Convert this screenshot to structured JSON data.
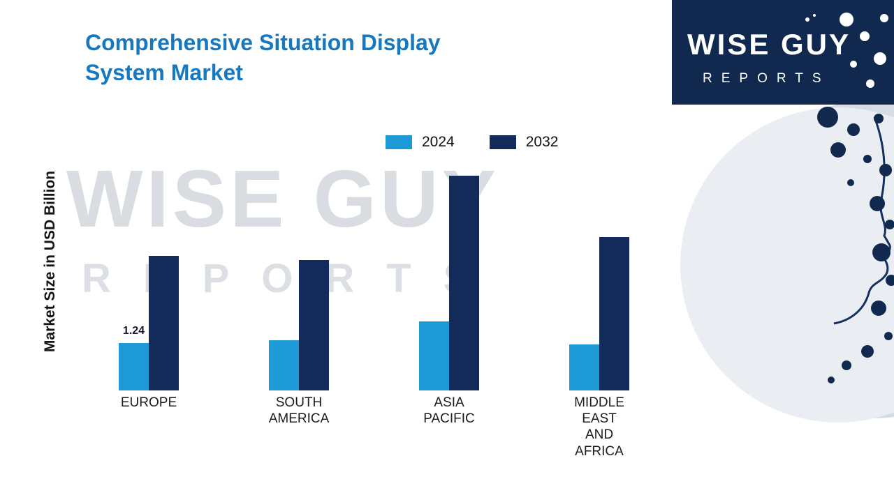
{
  "header": {
    "title_line1": "Comprehensive Situation Display",
    "title_line2": "System Market"
  },
  "logo": {
    "brand_line1": "WISE GUY",
    "brand_line2": "REPORTS"
  },
  "watermark": {
    "line1": "WISE GUY",
    "line2": "REPORTS"
  },
  "colors": {
    "title_blue": "#1878bf",
    "bar_2024": "#1e9ad6",
    "bar_2032": "#122b5a",
    "logo_navy": "#12294f"
  },
  "chart_data": {
    "type": "bar",
    "title": "Comprehensive Situation Display System Market",
    "xlabel": "",
    "ylabel": "Market Size in USD Billion",
    "categories": [
      "EUROPE",
      "SOUTH AMERICA",
      "ASIA PACIFIC",
      "MIDDLE EAST AND AFRICA"
    ],
    "category_label_lines": [
      [
        "EUROPE"
      ],
      [
        "SOUTH",
        "AMERICA"
      ],
      [
        "ASIA",
        "PACIFIC"
      ],
      [
        "MIDDLE",
        "EAST",
        "AND",
        "AFRICA"
      ]
    ],
    "series": [
      {
        "name": "2024",
        "color": "#1e9ad6",
        "values": [
          1.24,
          1.3,
          1.8,
          1.2
        ]
      },
      {
        "name": "2032",
        "color": "#122b5a",
        "values": [
          3.5,
          3.4,
          5.6,
          4.0
        ]
      }
    ],
    "annotations": [
      {
        "category_index": 0,
        "series_index": 0,
        "text": "1.24"
      }
    ],
    "legend_position": "top",
    "grid": false,
    "ylim": [
      0,
      6
    ]
  }
}
